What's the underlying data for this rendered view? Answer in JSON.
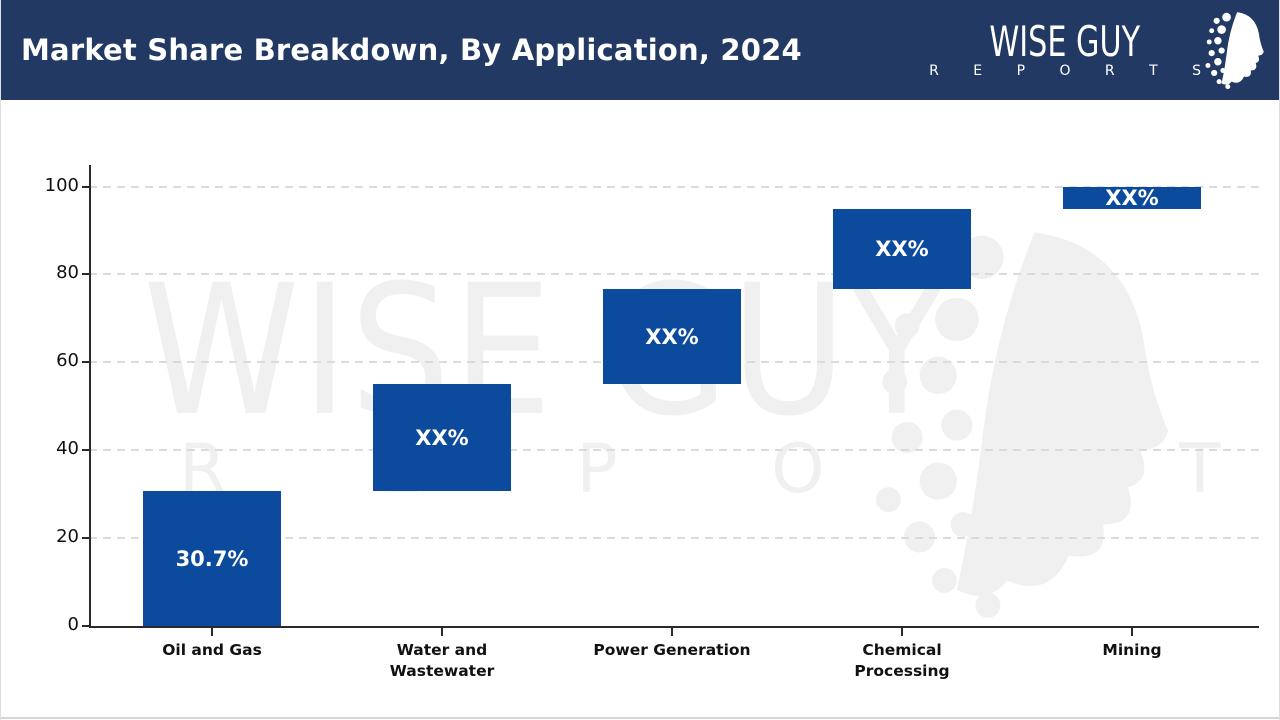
{
  "header": {
    "title": "Market Share Breakdown, By Application, 2024",
    "logo": {
      "line1": "WISE GUY",
      "line2": "R E P O R T S"
    }
  },
  "watermark": {
    "line1": "WISE GUY",
    "line2": "R E P O R T S"
  },
  "colors": {
    "header_bg": "#223963",
    "bar": "#0c4a9e",
    "bar_label": "#ffffff",
    "gridline": "#dbdbdb",
    "axis": "#2a2a2a",
    "watermark": "#f0f0f1"
  },
  "chart_data": {
    "type": "bar",
    "subtype": "waterfall",
    "title": "Market Share Breakdown, By Application, 2024",
    "xlabel": "",
    "ylabel": "",
    "ylim": [
      0,
      100
    ],
    "yticks": [
      0,
      20,
      40,
      60,
      80,
      100
    ],
    "grid": "horizontal dashed",
    "legend": "none",
    "categories": [
      "Oil and Gas",
      "Water and Wastewater",
      "Power Generation",
      "Chemical Processing",
      "Mining"
    ],
    "segments": [
      {
        "category": "Oil and Gas",
        "category_lines": [
          "Oil and Gas"
        ],
        "start": 0,
        "end": 30.7,
        "value": 30.7,
        "label": "30.7%"
      },
      {
        "category": "Water and Wastewater",
        "category_lines": [
          "Water and",
          "Wastewater"
        ],
        "start": 30.7,
        "end": 55.0,
        "value": 24.3,
        "label": "XX%"
      },
      {
        "category": "Power Generation",
        "category_lines": [
          "Power Generation"
        ],
        "start": 55.0,
        "end": 76.6,
        "value": 21.6,
        "label": "XX%"
      },
      {
        "category": "Chemical Processing",
        "category_lines": [
          "Chemical",
          "Processing"
        ],
        "start": 76.6,
        "end": 94.8,
        "value": 18.2,
        "label": "XX%"
      },
      {
        "category": "Mining",
        "category_lines": [
          "Mining"
        ],
        "start": 94.8,
        "end": 100,
        "value": 5.2,
        "label": "XX%"
      }
    ]
  }
}
